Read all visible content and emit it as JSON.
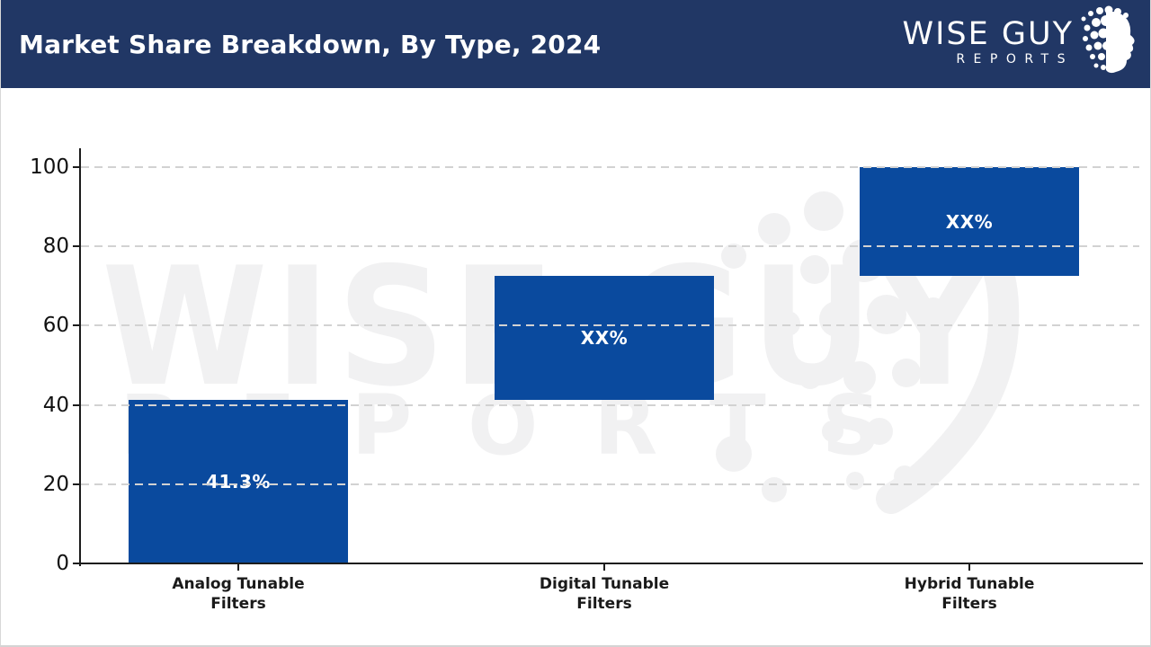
{
  "header": {
    "title": "Market Share Breakdown, By Type, 2024",
    "logo": {
      "line1": "WISE GUY",
      "line2": "REPORTS"
    },
    "bg_color": "#213765"
  },
  "watermark": {
    "line1": "WISE GUY",
    "line2": "REPORTS"
  },
  "chart_data": {
    "type": "bar",
    "variant": "floating-segment-waterfall",
    "title": "Market Share Breakdown, By Type, 2024",
    "categories": [
      "Analog Tunable\nFilters",
      "Digital Tunable\nFilters",
      "Hybrid Tunable\nFilters"
    ],
    "segments": [
      {
        "category": "Analog Tunable Filters",
        "start": 0,
        "end": 41.3,
        "label": "41.3%"
      },
      {
        "category": "Digital Tunable Filters",
        "start": 41.3,
        "end": 72.5,
        "label": "XX%"
      },
      {
        "category": "Hybrid Tunable Filters",
        "start": 72.5,
        "end": 100,
        "label": "XX%"
      }
    ],
    "xlabel": "",
    "ylabel": "",
    "yticks": [
      0,
      20,
      40,
      60,
      80,
      100
    ],
    "ylim": [
      0,
      104.8
    ],
    "grid": "horizontal-dashed",
    "legend": "none",
    "bar_color": "#0a4a9e",
    "bar_label_color": "#ffffff",
    "gridline_color": "#d2d2d2",
    "axis_color": "#1c1c1c"
  }
}
